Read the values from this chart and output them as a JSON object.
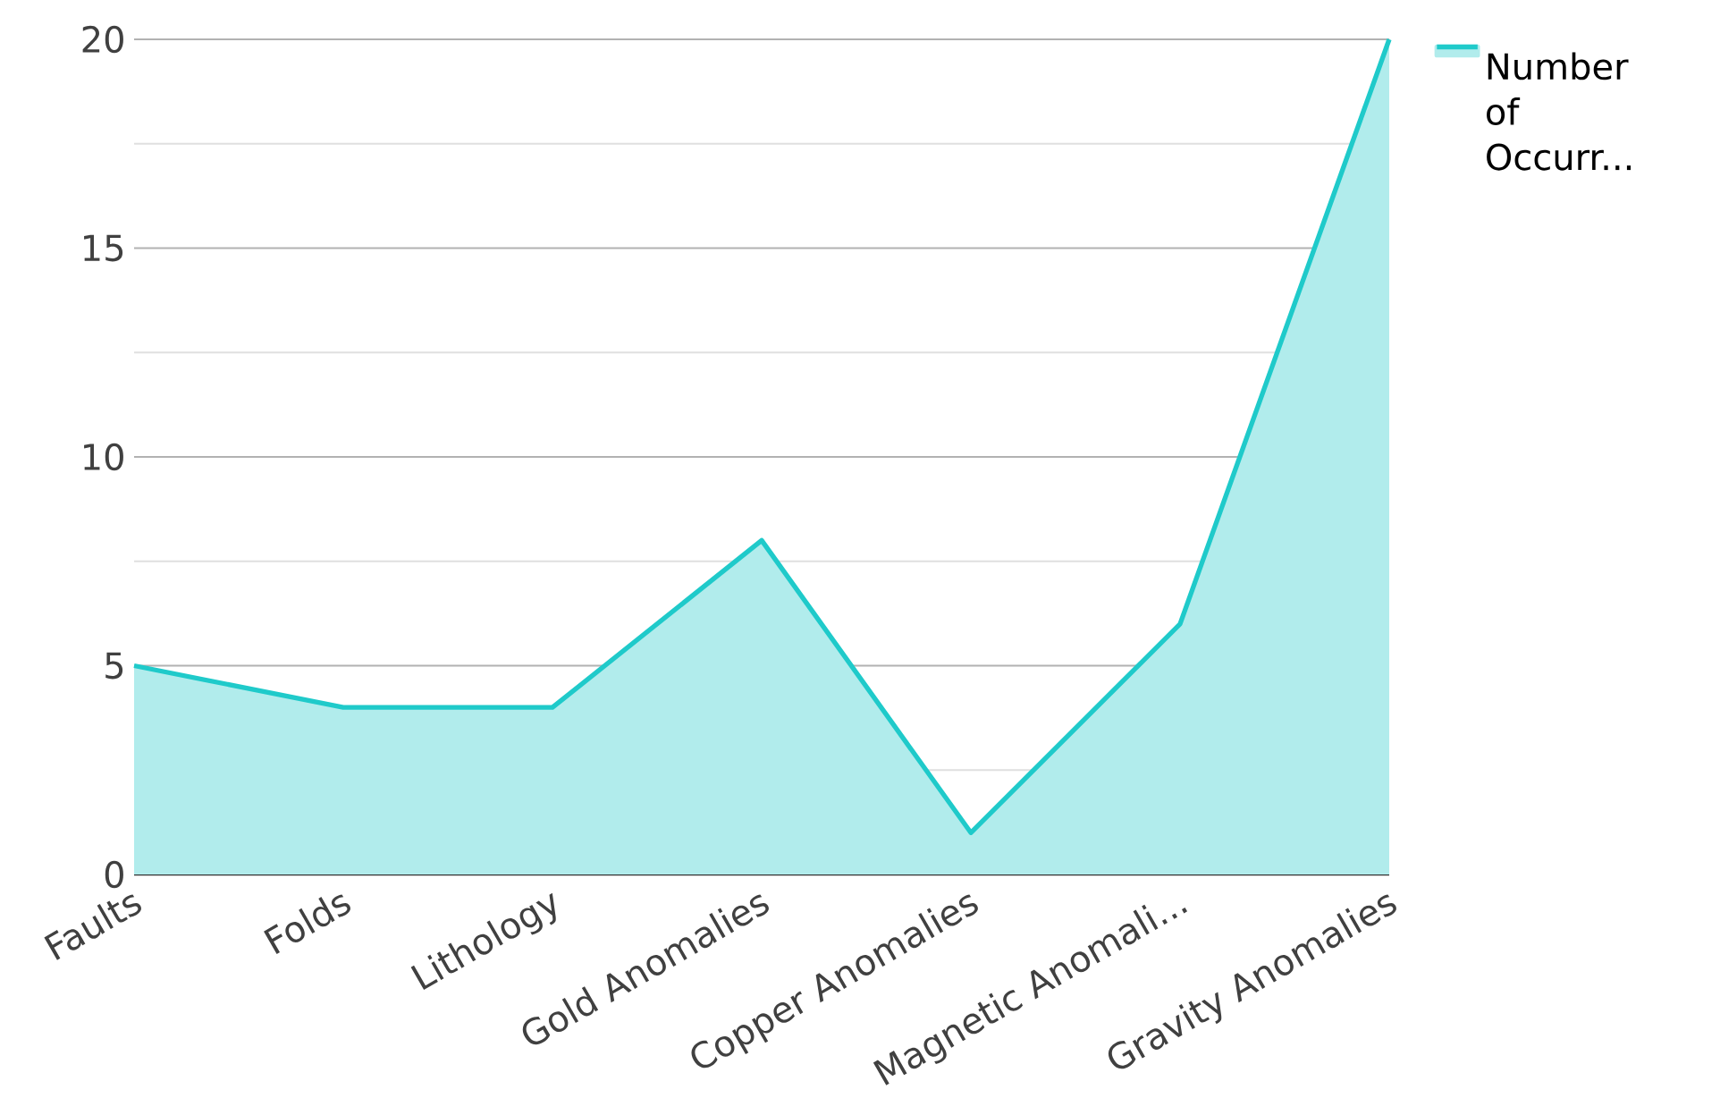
{
  "chart_data": {
    "type": "area",
    "categories": [
      "Faults",
      "Folds",
      "Lithology",
      "Gold Anomalies",
      "Copper Anomalies",
      "Magnetic Anomali...",
      "Gravity Anomalies"
    ],
    "series": [
      {
        "name": "Number of Occurr...",
        "color": "#1fcaca",
        "values": [
          5,
          4,
          4,
          8,
          1,
          6,
          20
        ]
      }
    ],
    "ylim": [
      0,
      20
    ],
    "yticks": [
      0,
      5,
      10,
      15,
      20
    ],
    "grid": "y",
    "legend": "top right"
  }
}
